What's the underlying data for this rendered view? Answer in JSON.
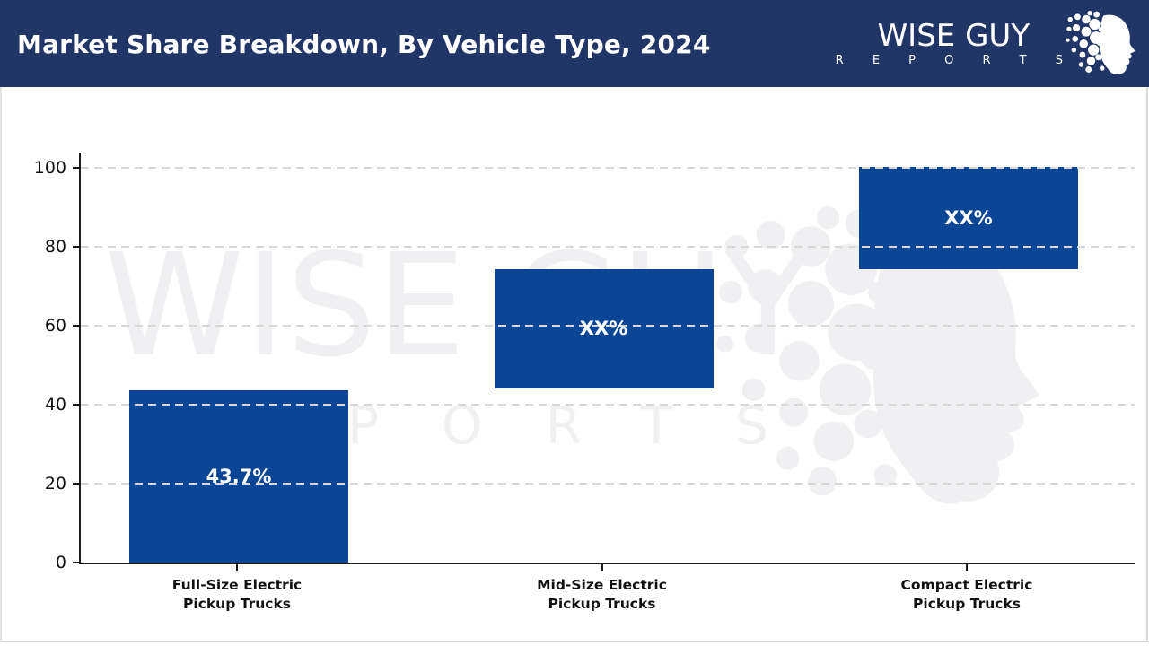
{
  "header": {
    "title": "Market Share Breakdown, By Vehicle Type, 2024",
    "brand": {
      "line1": "WISE GUY",
      "line2": "R E P O R T S"
    }
  },
  "watermark": {
    "line1": "WISE GUY",
    "line2": "REPORTS"
  },
  "colors": {
    "bar": "#0b4696",
    "header_bg": "#213667",
    "bar_label": "#ffffff",
    "gridline": "#d8d8d8",
    "watermark": "#f0f0f2",
    "axis": "#1a1a1a"
  },
  "chart_data": {
    "type": "bar",
    "subtype": "waterfall-stacked-segments",
    "title": "Market Share Breakdown, By Vehicle Type, 2024",
    "categories": [
      "Full-Size Electric\nPickup Trucks",
      "Mid-Size Electric\nPickup Trucks",
      "Compact Electric\nPickup Trucks"
    ],
    "segments": [
      [
        0,
        43.7
      ],
      [
        44.1,
        74.4
      ],
      [
        74.4,
        100.3
      ]
    ],
    "labels": [
      "43.7%",
      "XX%",
      "XX%"
    ],
    "xlabel": "",
    "ylabel": "",
    "ylim": [
      0,
      104
    ],
    "yticks": [
      0,
      20,
      40,
      60,
      80,
      100
    ],
    "grid": "horizontal dashed, drawn over bars",
    "legend": "none"
  }
}
